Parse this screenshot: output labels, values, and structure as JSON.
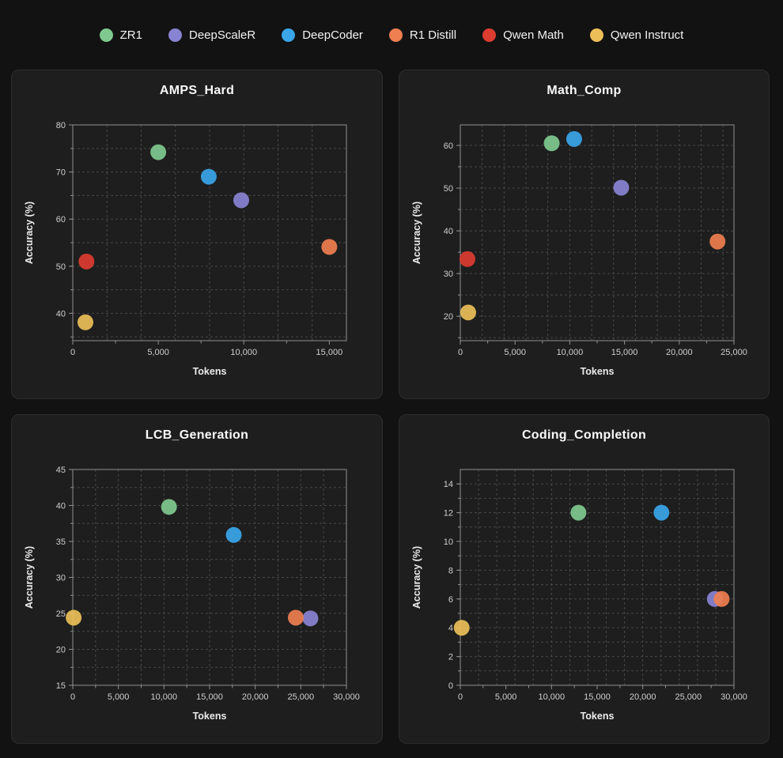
{
  "page": {
    "background": "#121212",
    "card_background": "#1e1e1e"
  },
  "style": {
    "grid_color": "#474747",
    "axis_color": "#909090",
    "tick_text_color": "#cfcfcf",
    "axis_title_color": "#ebebeb",
    "title_color": "#fafafa",
    "point_radius": 10,
    "point_opacity": 0.92
  },
  "legend": {
    "items": [
      {
        "label": "ZR1",
        "color": "#7fc98f"
      },
      {
        "label": "DeepScaleR",
        "color": "#8983d3"
      },
      {
        "label": "DeepCoder",
        "color": "#3aa5e9"
      },
      {
        "label": "R1 Distill",
        "color": "#ef7e50"
      },
      {
        "label": "Qwen Math",
        "color": "#dd3c31"
      },
      {
        "label": "Qwen Instruct",
        "color": "#ecbf58"
      }
    ]
  },
  "chart_data": [
    {
      "type": "scatter",
      "title": "AMPS_Hard",
      "xlabel": "Tokens",
      "ylabel": "Accuracy (%)",
      "xlim": [
        0,
        16000
      ],
      "ylim": [
        34.2,
        80
      ],
      "x_ticks": [
        0,
        5000,
        10000,
        15000
      ],
      "y_ticks": [
        40,
        50,
        60,
        70,
        80
      ],
      "x_grid_step": 2000,
      "y_grid_step": 5,
      "x_tick_step": 5000,
      "series": [
        {
          "name": "ZR1",
          "x": 5000,
          "y": 74.2
        },
        {
          "name": "DeepScaleR",
          "x": 9850,
          "y": 64.0
        },
        {
          "name": "DeepCoder",
          "x": 7950,
          "y": 69.0
        },
        {
          "name": "R1 Distill",
          "x": 15000,
          "y": 54.1
        },
        {
          "name": "Qwen Math",
          "x": 800,
          "y": 51.0
        },
        {
          "name": "Qwen Instruct",
          "x": 740,
          "y": 38.1
        }
      ]
    },
    {
      "type": "scatter",
      "title": "Math_Comp",
      "xlabel": "Tokens",
      "ylabel": "Accuracy (%)",
      "xlim": [
        0,
        25000
      ],
      "ylim": [
        14.3,
        64.8
      ],
      "x_ticks": [
        0,
        5000,
        10000,
        15000,
        20000,
        25000
      ],
      "y_ticks": [
        20,
        30,
        40,
        50,
        60
      ],
      "x_grid_step": 2000,
      "y_grid_step": 5,
      "x_tick_step": 5000,
      "series": [
        {
          "name": "ZR1",
          "x": 8350,
          "y": 60.5
        },
        {
          "name": "DeepScaleR",
          "x": 14700,
          "y": 50.1
        },
        {
          "name": "DeepCoder",
          "x": 10400,
          "y": 61.5
        },
        {
          "name": "R1 Distill",
          "x": 23500,
          "y": 37.5
        },
        {
          "name": "Qwen Math",
          "x": 650,
          "y": 33.4
        },
        {
          "name": "Qwen Instruct",
          "x": 720,
          "y": 20.9
        }
      ]
    },
    {
      "type": "scatter",
      "title": "LCB_Generation",
      "xlabel": "Tokens",
      "ylabel": "Accuracy (%)",
      "xlim": [
        0,
        30000
      ],
      "ylim": [
        15,
        45
      ],
      "x_ticks": [
        0,
        5000,
        10000,
        15000,
        20000,
        25000,
        30000
      ],
      "y_ticks": [
        15,
        20,
        25,
        30,
        35,
        40,
        45
      ],
      "x_grid_step": 2500,
      "y_grid_step": 2.5,
      "x_tick_step": 5000,
      "series": [
        {
          "name": "ZR1",
          "x": 10550,
          "y": 39.8
        },
        {
          "name": "DeepScaleR",
          "x": 26050,
          "y": 24.3
        },
        {
          "name": "DeepCoder",
          "x": 17650,
          "y": 35.9
        },
        {
          "name": "R1 Distill",
          "x": 24450,
          "y": 24.4
        },
        {
          "name": "Qwen Instruct",
          "x": 100,
          "y": 24.4
        }
      ]
    },
    {
      "type": "scatter",
      "title": "Coding_Completion",
      "xlabel": "Tokens",
      "ylabel": "Accuracy (%)",
      "xlim": [
        0,
        30000
      ],
      "ylim": [
        0,
        15
      ],
      "x_ticks": [
        0,
        5000,
        10000,
        15000,
        20000,
        25000,
        30000
      ],
      "y_ticks": [
        0,
        2,
        4,
        6,
        8,
        10,
        12,
        14
      ],
      "x_grid_step": 2000,
      "y_grid_step": 1,
      "x_tick_step": 5000,
      "series": [
        {
          "name": "ZR1",
          "x": 12950,
          "y": 12.0
        },
        {
          "name": "DeepScaleR",
          "x": 27900,
          "y": 6.0
        },
        {
          "name": "DeepCoder",
          "x": 22050,
          "y": 12.0
        },
        {
          "name": "R1 Distill",
          "x": 28650,
          "y": 6.0
        },
        {
          "name": "Qwen Instruct",
          "x": 150,
          "y": 4.0
        }
      ]
    }
  ]
}
